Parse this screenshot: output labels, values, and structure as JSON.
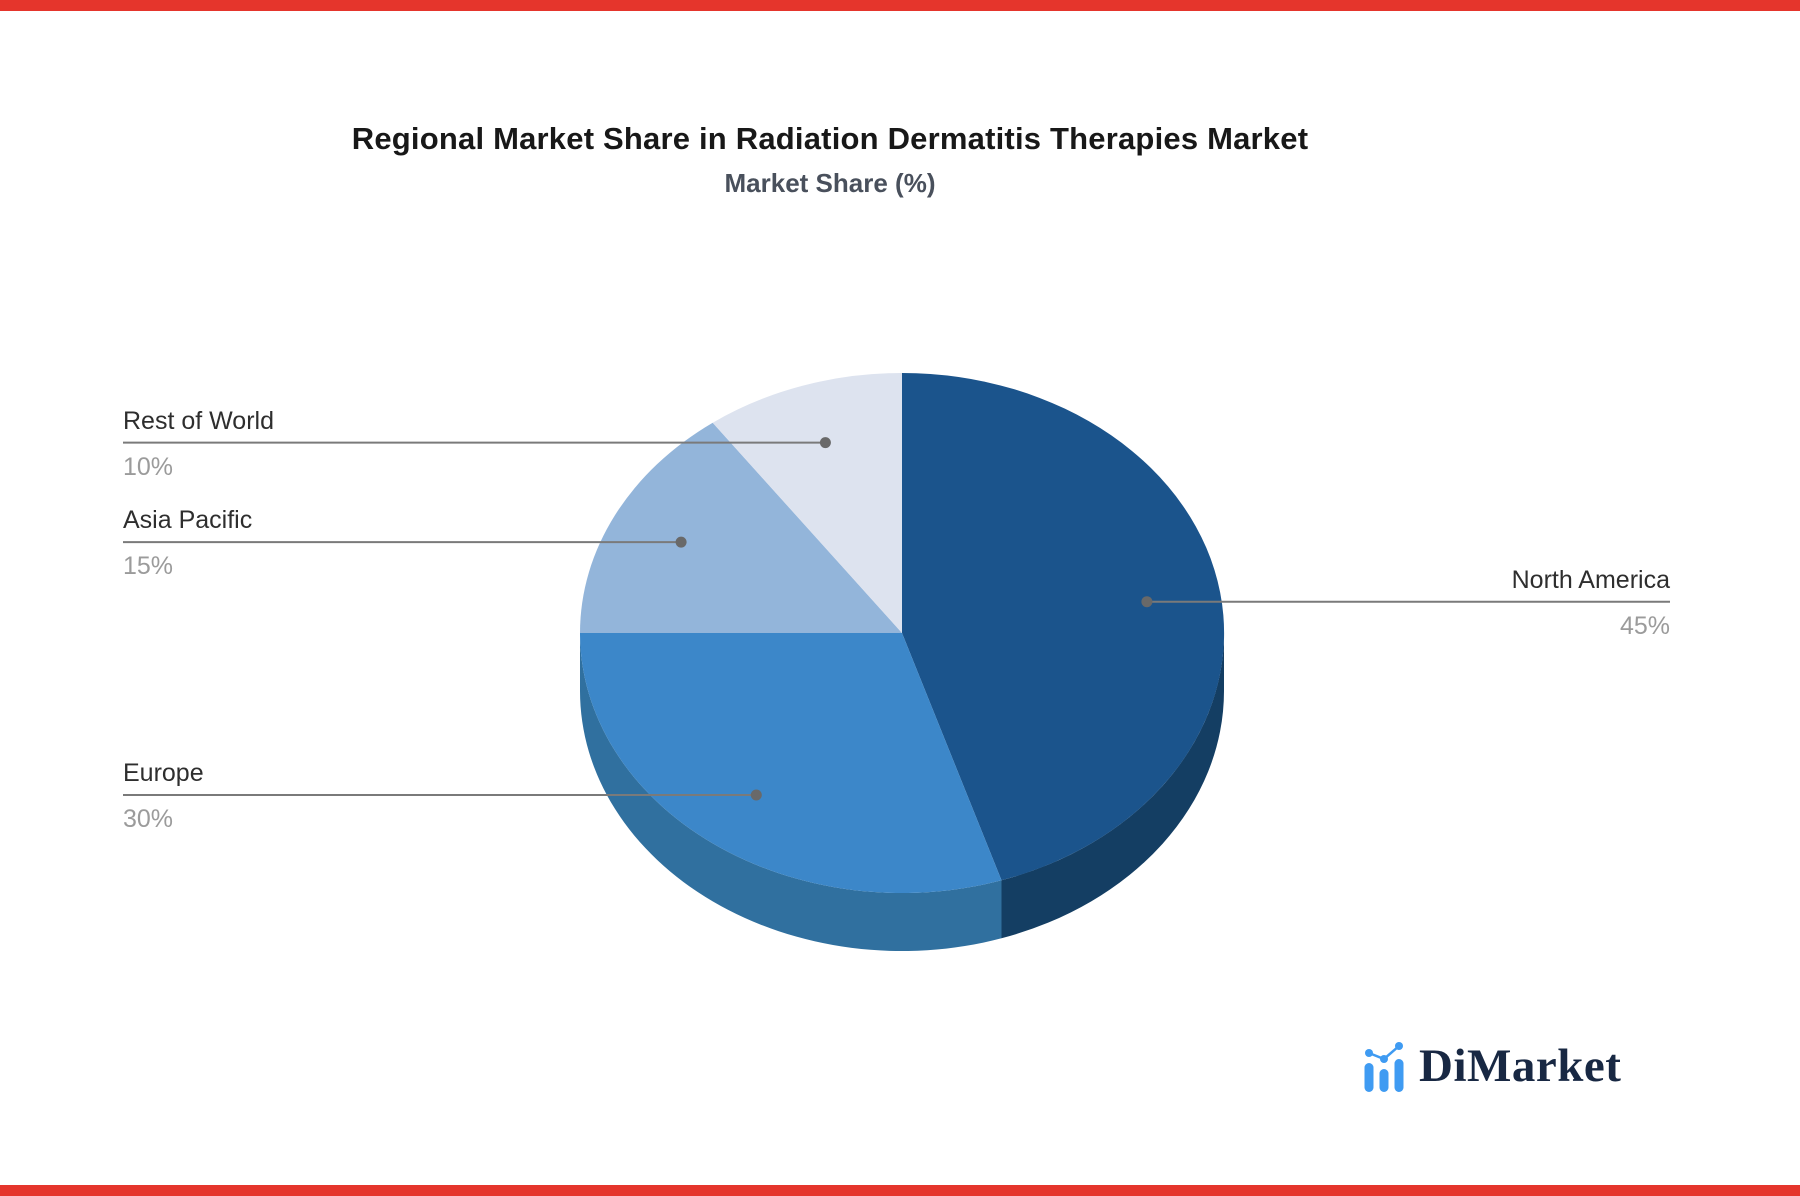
{
  "accent_bar_color": "#e5352c",
  "header": {
    "title": "Regional Market Share in Radiation Dermatitis Therapies Market",
    "subtitle": "Market Share (%)"
  },
  "chart_data": {
    "type": "pie",
    "title": "Regional Market Share in Radiation Dermatitis Therapies Market",
    "subtitle": "Market Share (%)",
    "unit": "%",
    "labels": [
      "North America",
      "Europe",
      "Asia Pacific",
      "Rest of World"
    ],
    "values": [
      45,
      30,
      15,
      10
    ],
    "value_labels": [
      "45%",
      "30%",
      "15%",
      "10%"
    ],
    "slice_colors": [
      "#1b548c",
      "#3c87c9",
      "#93b5da",
      "#dde3ef"
    ],
    "rim_colors": [
      "#143e63",
      "#30709f",
      "#7ea3cc",
      "#c9d4e6"
    ],
    "effect_3d": true,
    "start_angle_deg": 0,
    "direction": "clockwise",
    "legend": "none",
    "label_style": "leader-line callouts, name above line and percent below",
    "leader_line_color": "#7a7a7a",
    "leader_dot_color": "#696969"
  },
  "branding": {
    "logo_text": "DiMarket",
    "logo_icon": "bar-chart-line-icon",
    "icon_color": "#3f9bf2",
    "text_color": "#182843"
  }
}
